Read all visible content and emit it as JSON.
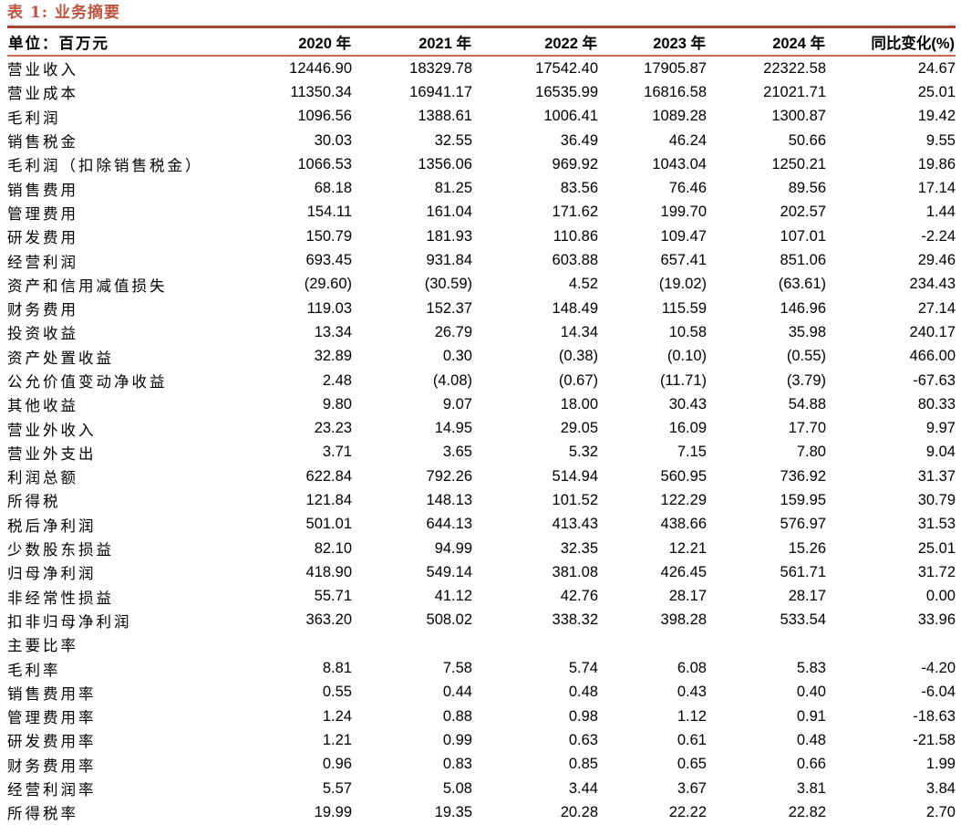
{
  "colors": {
    "accent_title": "#BE5440",
    "rule_title": "#A7402C",
    "rule_header": "#C8694B",
    "text": "#000000",
    "background": "#ffffff"
  },
  "table": {
    "title": "表 1:  业务摘要",
    "unit_header": "单位：百万元",
    "columns": [
      "2020 年",
      "2021 年",
      "2022 年",
      "2023 年",
      "2024 年",
      "同比变化(%)"
    ],
    "rows": [
      {
        "label": "营业收入",
        "values": [
          "12446.90",
          "18329.78",
          "17542.40",
          "17905.87",
          "22322.58",
          "24.67"
        ]
      },
      {
        "label": "营业成本",
        "values": [
          "11350.34",
          "16941.17",
          "16535.99",
          "16816.58",
          "21021.71",
          "25.01"
        ]
      },
      {
        "label": "毛利润",
        "values": [
          "1096.56",
          "1388.61",
          "1006.41",
          "1089.28",
          "1300.87",
          "19.42"
        ]
      },
      {
        "label": "销售税金",
        "values": [
          "30.03",
          "32.55",
          "36.49",
          "46.24",
          "50.66",
          "9.55"
        ]
      },
      {
        "label": "毛利润（扣除销售税金）",
        "values": [
          "1066.53",
          "1356.06",
          "969.92",
          "1043.04",
          "1250.21",
          "19.86"
        ]
      },
      {
        "label": "销售费用",
        "values": [
          "68.18",
          "81.25",
          "83.56",
          "76.46",
          "89.56",
          "17.14"
        ]
      },
      {
        "label": "管理费用",
        "values": [
          "154.11",
          "161.04",
          "171.62",
          "199.70",
          "202.57",
          "1.44"
        ]
      },
      {
        "label": "研发费用",
        "values": [
          "150.79",
          "181.93",
          "110.86",
          "109.47",
          "107.01",
          "-2.24"
        ]
      },
      {
        "label": "经营利润",
        "values": [
          "693.45",
          "931.84",
          "603.88",
          "657.41",
          "851.06",
          "29.46"
        ]
      },
      {
        "label": "资产和信用减值损失",
        "values": [
          "(29.60)",
          "(30.59)",
          "4.52",
          "(19.02)",
          "(63.61)",
          "234.43"
        ]
      },
      {
        "label": "财务费用",
        "values": [
          "119.03",
          "152.37",
          "148.49",
          "115.59",
          "146.96",
          "27.14"
        ]
      },
      {
        "label": "投资收益",
        "values": [
          "13.34",
          "26.79",
          "14.34",
          "10.58",
          "35.98",
          "240.17"
        ]
      },
      {
        "label": "资产处置收益",
        "values": [
          "32.89",
          "0.30",
          "(0.38)",
          "(0.10)",
          "(0.55)",
          "466.00"
        ]
      },
      {
        "label": "公允价值变动净收益",
        "values": [
          "2.48",
          "(4.08)",
          "(0.67)",
          "(11.71)",
          "(3.79)",
          "-67.63"
        ]
      },
      {
        "label": "其他收益",
        "values": [
          "9.80",
          "9.07",
          "18.00",
          "30.43",
          "54.88",
          "80.33"
        ]
      },
      {
        "label": "营业外收入",
        "values": [
          "23.23",
          "14.95",
          "29.05",
          "16.09",
          "17.70",
          "9.97"
        ]
      },
      {
        "label": "营业外支出",
        "values": [
          "3.71",
          "3.65",
          "5.32",
          "7.15",
          "7.80",
          "9.04"
        ]
      },
      {
        "label": "利润总额",
        "values": [
          "622.84",
          "792.26",
          "514.94",
          "560.95",
          "736.92",
          "31.37"
        ]
      },
      {
        "label": "所得税",
        "values": [
          "121.84",
          "148.13",
          "101.52",
          "122.29",
          "159.95",
          "30.79"
        ]
      },
      {
        "label": "税后净利润",
        "values": [
          "501.01",
          "644.13",
          "413.43",
          "438.66",
          "576.97",
          "31.53"
        ]
      },
      {
        "label": "少数股东损益",
        "values": [
          "82.10",
          "94.99",
          "32.35",
          "12.21",
          "15.26",
          "25.01"
        ]
      },
      {
        "label": "归母净利润",
        "values": [
          "418.90",
          "549.14",
          "381.08",
          "426.45",
          "561.71",
          "31.72"
        ]
      },
      {
        "label": "非经常性损益",
        "values": [
          "55.71",
          "41.12",
          "42.76",
          "28.17",
          "28.17",
          "0.00"
        ]
      },
      {
        "label": "扣非归母净利润",
        "values": [
          "363.20",
          "508.02",
          "338.32",
          "398.28",
          "533.54",
          "33.96"
        ]
      },
      {
        "label": "主要比率",
        "values": [
          "",
          "",
          "",
          "",
          "",
          ""
        ]
      },
      {
        "label": "毛利率",
        "values": [
          "8.81",
          "7.58",
          "5.74",
          "6.08",
          "5.83",
          "-4.20"
        ]
      },
      {
        "label": "销售费用率",
        "values": [
          "0.55",
          "0.44",
          "0.48",
          "0.43",
          "0.40",
          "-6.04"
        ]
      },
      {
        "label": "管理费用率",
        "values": [
          "1.24",
          "0.88",
          "0.98",
          "1.12",
          "0.91",
          "-18.63"
        ]
      },
      {
        "label": "研发费用率",
        "values": [
          "1.21",
          "0.99",
          "0.63",
          "0.61",
          "0.48",
          "-21.58"
        ]
      },
      {
        "label": "财务费用率",
        "values": [
          "0.96",
          "0.83",
          "0.85",
          "0.65",
          "0.66",
          "1.99"
        ]
      },
      {
        "label": "经营利润率",
        "values": [
          "5.57",
          "5.08",
          "3.44",
          "3.67",
          "3.81",
          "3.84"
        ]
      },
      {
        "label": "所得税率",
        "values": [
          "19.99",
          "19.35",
          "20.28",
          "22.22",
          "22.82",
          "2.70"
        ]
      }
    ]
  }
}
